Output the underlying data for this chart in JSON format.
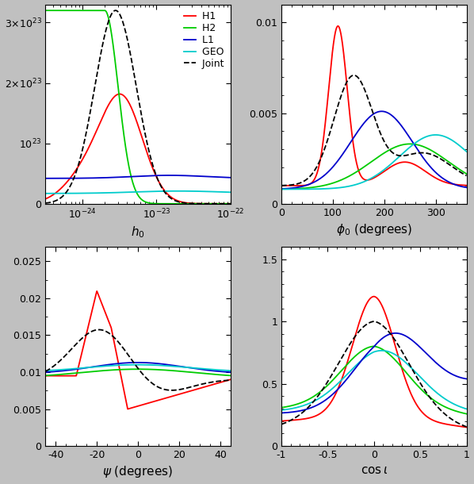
{
  "colors": {
    "H1": "#ff0000",
    "H2": "#00cc00",
    "L1": "#0000cc",
    "GEO": "#00cccc",
    "Joint": "#000000"
  },
  "background": "#ffffff",
  "fig_bg": "#c0c0c0",
  "label_fontsize": 11,
  "tick_fontsize": 9,
  "legend_fontsize": 9
}
